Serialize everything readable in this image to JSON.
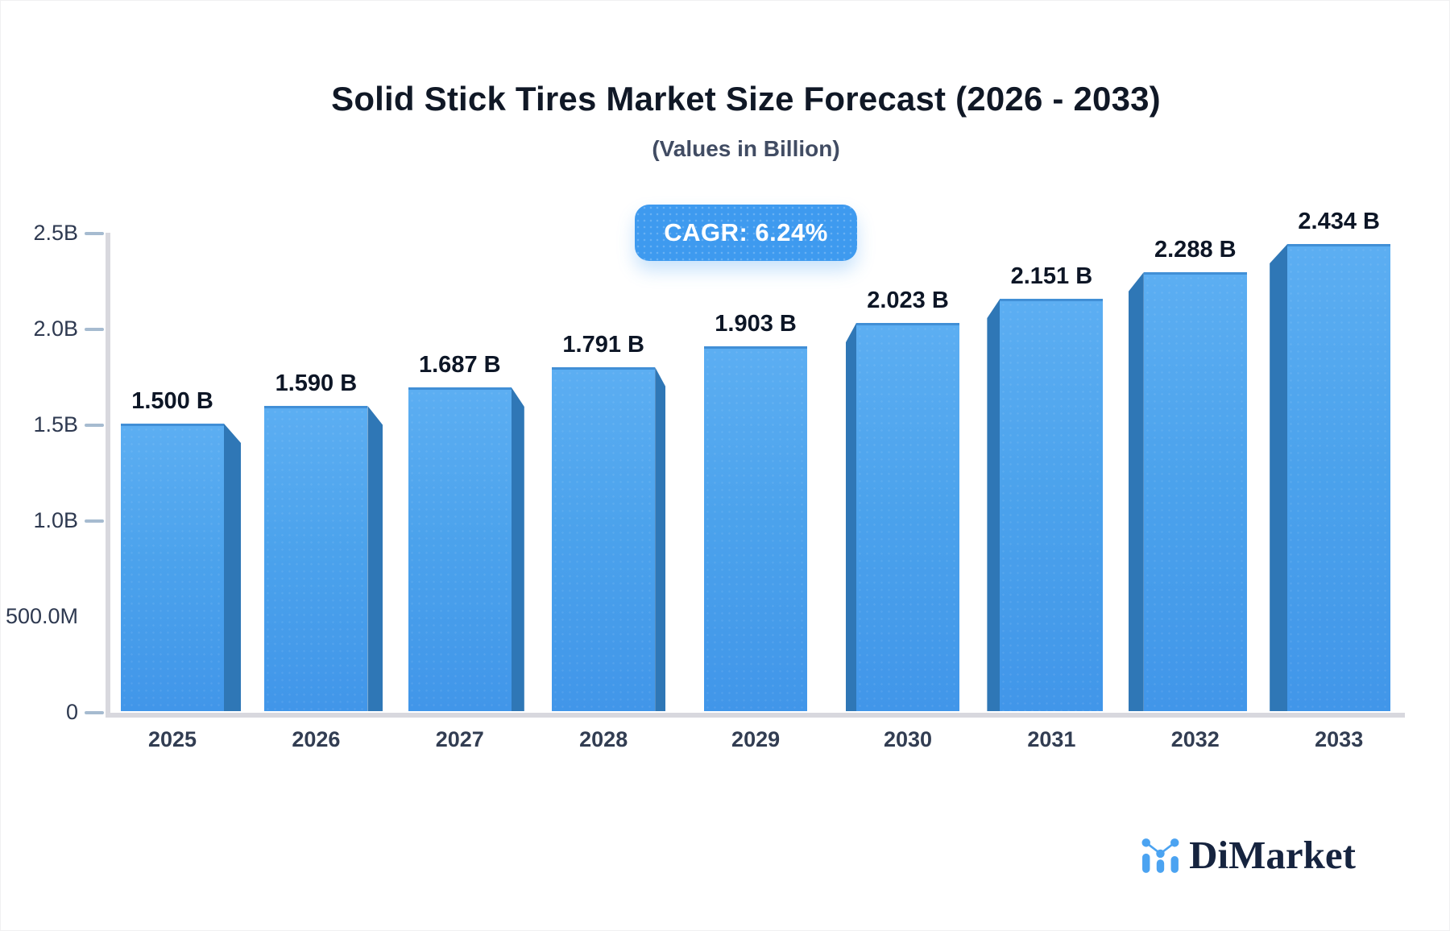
{
  "header": {
    "title": "Solid Stick Tires Market Size Forecast (2026 - 2033)",
    "subtitle": "(Values in Billion)",
    "cagr_label": "CAGR: 6.24%"
  },
  "footer": {
    "brand": "DiMarket"
  },
  "colors": {
    "badge_bg": "#3e9aef",
    "bar_face_top": "#5caef2",
    "bar_face_bottom": "#4196e9",
    "bar_side": "#2f77b6",
    "axis_line": "#d8d8de",
    "tick_dash": "#a6bbd0",
    "title_text": "#101826",
    "subtitle_text": "#414c63",
    "logo_navy": "#16243f",
    "logo_blue": "#4ba3f1"
  },
  "chart_data": {
    "type": "bar",
    "title": "Solid Stick Tires Market Size Forecast (2026 - 2033)",
    "subtitle": "(Values in Billion)",
    "annotation": "CAGR: 6.24%",
    "categories": [
      "2025",
      "2026",
      "2027",
      "2028",
      "2029",
      "2030",
      "2031",
      "2032",
      "2033"
    ],
    "values": [
      1.5,
      1.59,
      1.687,
      1.791,
      1.903,
      2.023,
      2.151,
      2.288,
      2.434
    ],
    "value_labels": [
      "1.500 B",
      "1.590 B",
      "1.687 B",
      "1.791 B",
      "1.903 B",
      "2.023 B",
      "2.151 B",
      "2.288 B",
      "2.434 B"
    ],
    "xlabel": "",
    "ylabel": "",
    "ylim": [
      0,
      2.5
    ],
    "grid": false,
    "legend": false,
    "yticks": [
      {
        "label": "0",
        "value": 0.0,
        "dash": true
      },
      {
        "label": "500.0M",
        "value": 0.5,
        "dash": false
      },
      {
        "label": "1.0B",
        "value": 1.0,
        "dash": true
      },
      {
        "label": "1.5B",
        "value": 1.5,
        "dash": true
      },
      {
        "label": "2.0B",
        "value": 2.0,
        "dash": true
      },
      {
        "label": "2.5B",
        "value": 2.5,
        "dash": true
      }
    ]
  }
}
